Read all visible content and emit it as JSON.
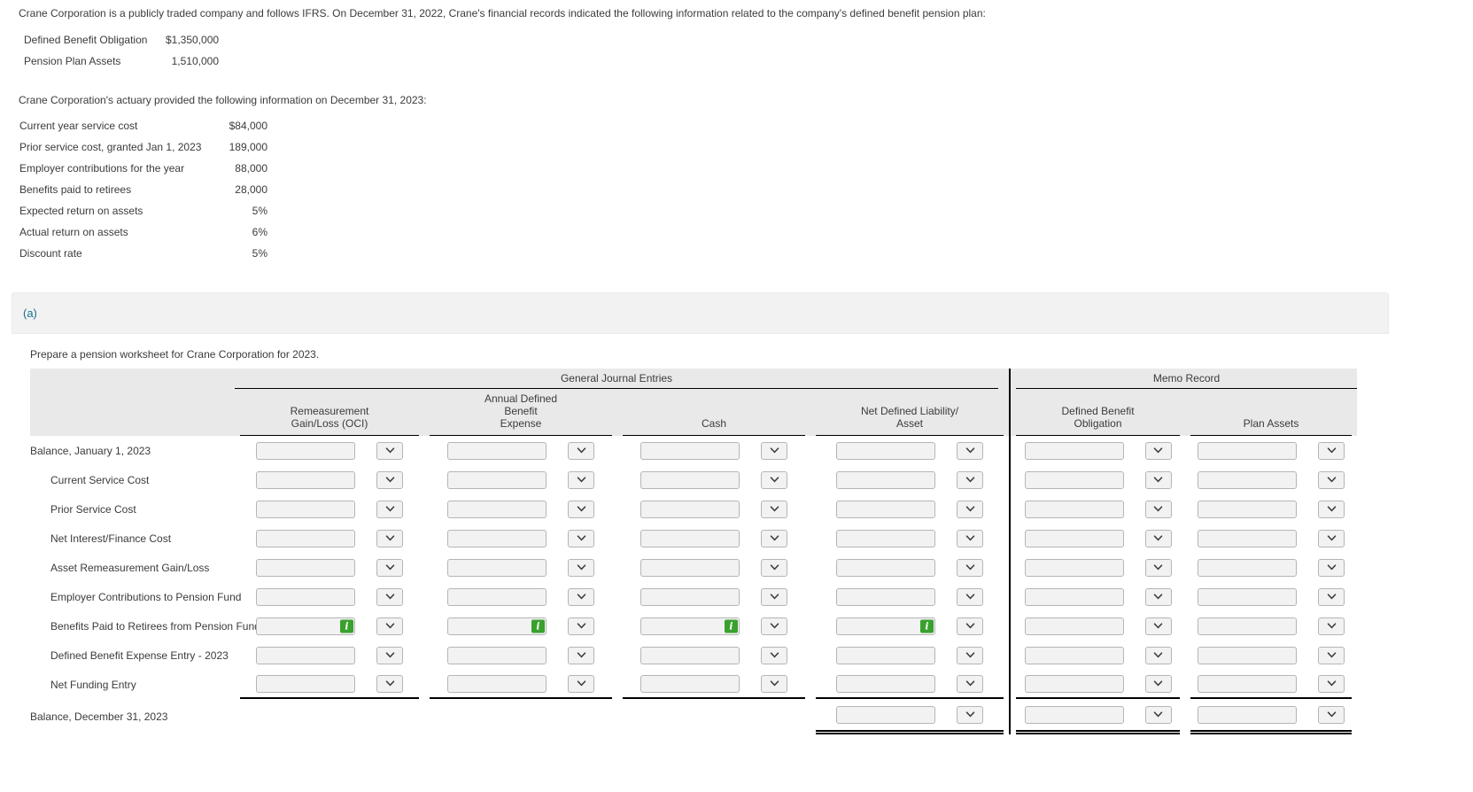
{
  "intro": {
    "paragraph1": "Crane Corporation is a publicly traded company and follows IFRS. On December 31, 2022, Crane's financial records indicated the following information related to the company's defined benefit pension plan:",
    "plan_info": [
      {
        "label": "Defined Benefit Obligation",
        "value": "$1,350,000"
      },
      {
        "label": "Pension Plan Assets",
        "value": "1,510,000"
      }
    ],
    "paragraph2": "Crane Corporation's actuary provided the following information on December 31, 2023:",
    "actuary_info": [
      {
        "label": "Current year service cost",
        "value": "$84,000"
      },
      {
        "label": "Prior service cost, granted Jan 1, 2023",
        "value": "189,000"
      },
      {
        "label": "Employer contributions for the year",
        "value": "88,000"
      },
      {
        "label": "Benefits paid to retirees",
        "value": "28,000"
      },
      {
        "label": "Expected return on assets",
        "value": "5%"
      },
      {
        "label": "Actual return on assets",
        "value": "6%"
      },
      {
        "label": "Discount rate",
        "value": "5%"
      }
    ]
  },
  "section": {
    "label": "(a)",
    "instruction": "Prepare a pension worksheet for Crane Corporation for 2023."
  },
  "worksheet": {
    "group_headers": [
      {
        "label": "General Journal Entries",
        "span": 4
      },
      {
        "label": "Memo Record",
        "span": 2
      }
    ],
    "columns": [
      "Remeasurement\nGain/Loss (OCI)",
      "Annual Defined\nBenefit\nExpense",
      "Cash",
      "Net Defined Liability/\nAsset",
      "Defined Benefit\nObligation",
      "Plan Assets"
    ],
    "rows": [
      {
        "label": "Balance, January 1, 2023",
        "indent": false,
        "cells": [
          0,
          1,
          2,
          3,
          4,
          5
        ]
      },
      {
        "label": "Current Service Cost",
        "indent": true,
        "cells": [
          0,
          1,
          2,
          3,
          4,
          5
        ]
      },
      {
        "label": "Prior Service Cost",
        "indent": true,
        "cells": [
          0,
          1,
          2,
          3,
          4,
          5
        ]
      },
      {
        "label": "Net Interest/Finance Cost",
        "indent": true,
        "cells": [
          0,
          1,
          2,
          3,
          4,
          5
        ]
      },
      {
        "label": "Asset Remeasurement Gain/Loss",
        "indent": true,
        "cells": [
          0,
          1,
          2,
          3,
          4,
          5
        ]
      },
      {
        "label": "Employer Contributions to Pension Fund",
        "indent": true,
        "cells": [
          0,
          1,
          2,
          3,
          4,
          5
        ]
      },
      {
        "label": "Benefits Paid to Retirees from Pension Fund",
        "indent": true,
        "cells": [
          0,
          1,
          2,
          3,
          4,
          5
        ],
        "info_cols": [
          0,
          1,
          2,
          3
        ]
      },
      {
        "label": "Defined Benefit Expense Entry - 2023",
        "indent": true,
        "cells": [
          0,
          1,
          2,
          3,
          4,
          5
        ]
      },
      {
        "label": "Net Funding Entry",
        "indent": true,
        "cells": [
          0,
          1,
          2,
          3,
          4,
          5
        ],
        "underline_cols": [
          0,
          1,
          2,
          3,
          4,
          5
        ]
      },
      {
        "label": "Balance, December 31, 2023",
        "indent": false,
        "cells": [
          3,
          4,
          5
        ],
        "double_underline_cols": [
          3,
          4,
          5
        ]
      }
    ],
    "cell_input_value": "",
    "cell_select_value": ""
  },
  "icons": {
    "chevron_down": {
      "name": "chevron-down-icon",
      "glyph": "⌄"
    },
    "info": {
      "name": "info-icon",
      "glyph": "i"
    }
  },
  "colors": {
    "section_link": "#1a6d8e",
    "info_icon_green": "#39a12d",
    "table_header_bg": "#e9e9e9",
    "field_bg": "#f2f2f2",
    "field_border": "#b5b5b5",
    "rule_black": "#000000"
  }
}
